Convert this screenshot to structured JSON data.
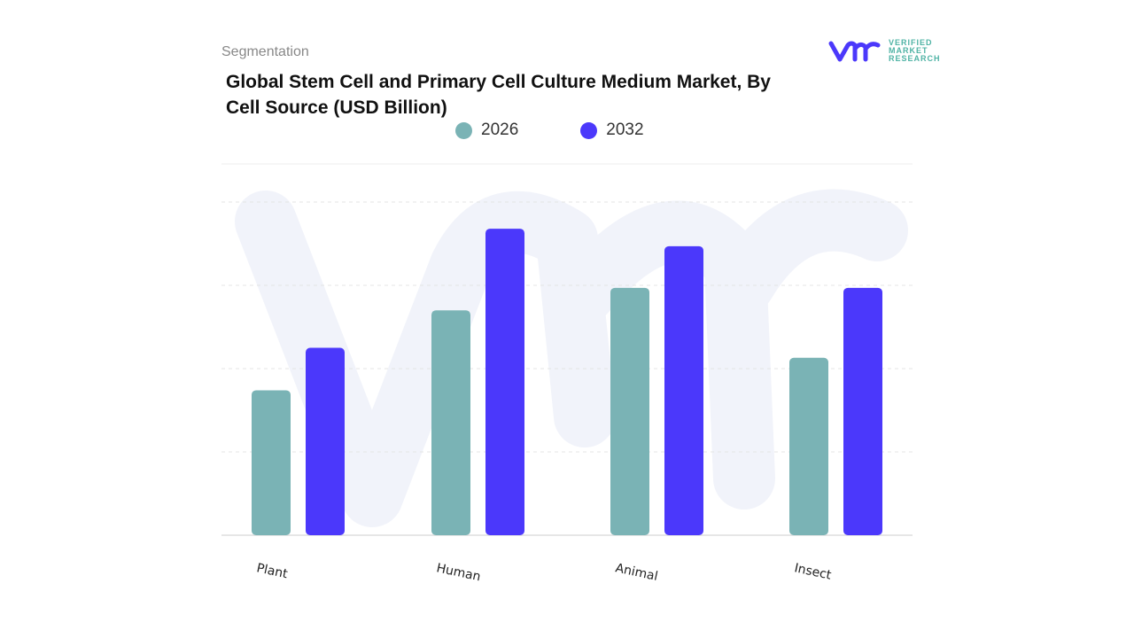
{
  "header": {
    "section": "Segmentation",
    "logo_text": "VERIFIED MARKET RESEARCH"
  },
  "chart_data": {
    "type": "bar",
    "title": "Global Stem Cell and Primary Cell Culture Medium Market, By Cell Source (USD Billion)",
    "categories": [
      "Plant",
      "Human",
      "Animal",
      "Insect"
    ],
    "series": [
      {
        "name": "2026",
        "values": [
          1.74,
          2.7,
          2.97,
          2.13
        ],
        "color": "#7ab3b5"
      },
      {
        "name": "2032",
        "values": [
          2.25,
          3.68,
          3.47,
          2.97
        ],
        "color": "#4b38fb"
      }
    ],
    "ylim": [
      0,
      4
    ],
    "grid": true,
    "legend": "top-center",
    "xlabel": "",
    "ylabel": ""
  }
}
